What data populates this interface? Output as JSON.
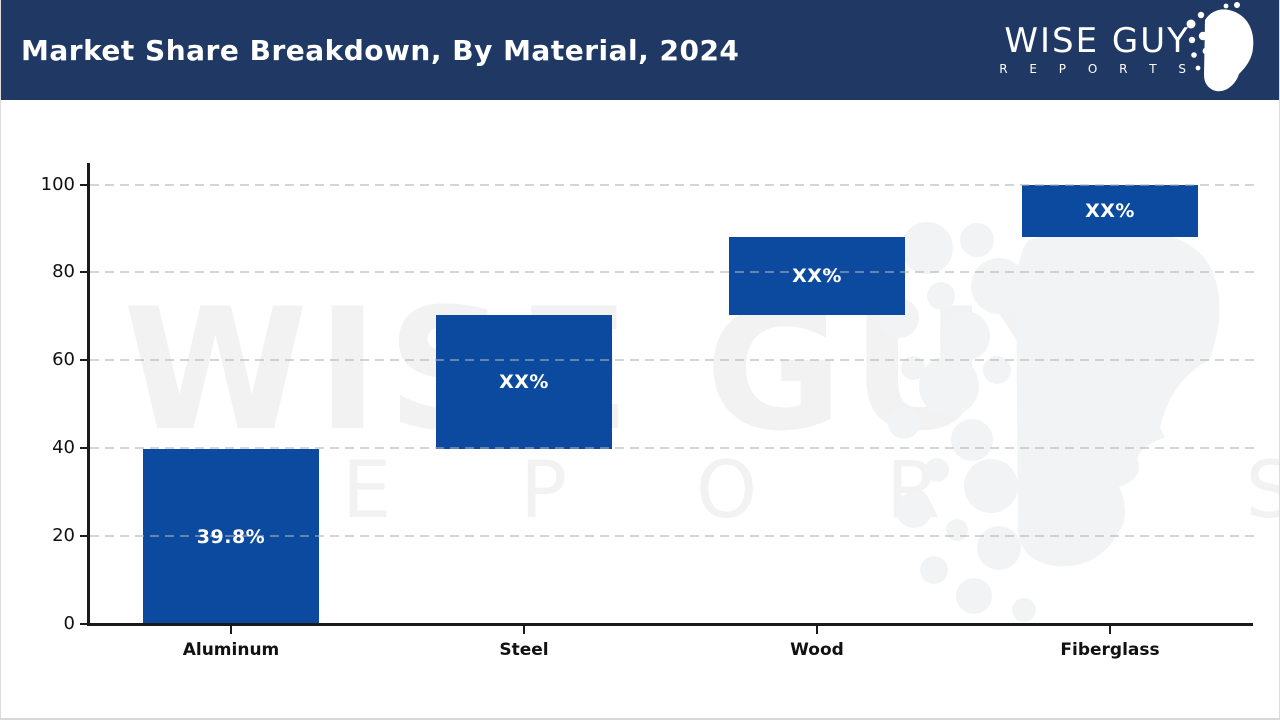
{
  "header": {
    "title": "Market Share Breakdown, By Material, 2024",
    "logo": {
      "line1": "WISE GUY",
      "line2": "R E P O R T S"
    }
  },
  "watermark": {
    "line1": "WISE GUY",
    "line2": "R E P O R T S"
  },
  "chart_data": {
    "type": "bar",
    "subtype": "waterfall",
    "title": "Market Share Breakdown, By Material, 2024",
    "categories": [
      "Aluminum",
      "Steel",
      "Wood",
      "Fiberglass"
    ],
    "series": [
      {
        "name": "Market share by material",
        "segments": [
          {
            "category": "Aluminum",
            "start": 0,
            "end": 39.8,
            "label": "39.8%"
          },
          {
            "category": "Steel",
            "start": 39.8,
            "end": 70.3,
            "label": "XX%"
          },
          {
            "category": "Wood",
            "start": 70.3,
            "end": 88.1,
            "label": "XX%"
          },
          {
            "category": "Fiberglass",
            "start": 88.1,
            "end": 100,
            "label": "XX%"
          }
        ]
      }
    ],
    "xlabel": "",
    "ylabel": "",
    "ylim": [
      0,
      105
    ],
    "yticks": [
      0,
      20,
      40,
      60,
      80,
      100
    ],
    "grid": "horizontal-dashed",
    "legend_position": "none"
  },
  "colors": {
    "header_bg": "#1f3864",
    "bar": "#0b4a9f",
    "bar_label_text": "#ffffff",
    "title_text": "#ffffff",
    "axis": "#1a1a1a",
    "grid": "#b2b2b2",
    "watermark": "#f2f2f2"
  }
}
